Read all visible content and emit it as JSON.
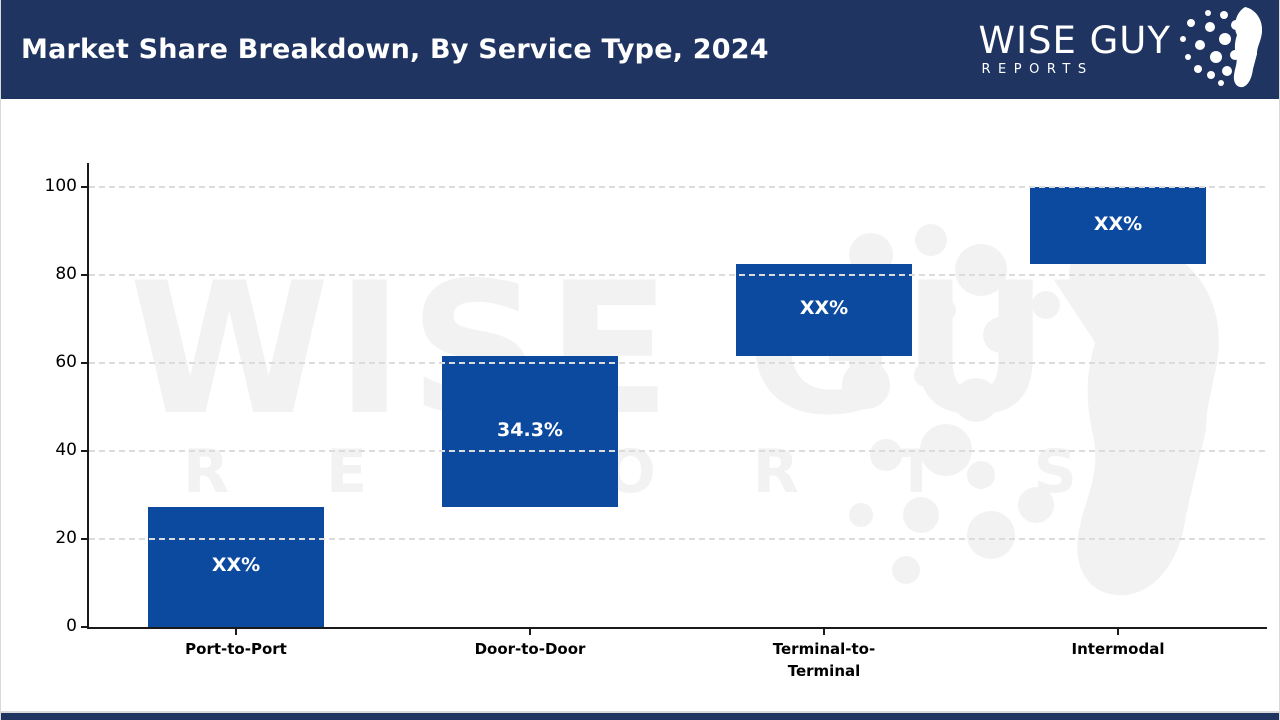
{
  "header": {
    "title": "Market Share Breakdown, By Service Type, 2024",
    "logo_line1": "WISE GUY",
    "logo_line2": "REPORTS"
  },
  "watermark": {
    "line1": "WISE GUY",
    "line2": "R E P O R T S"
  },
  "chart_data": {
    "type": "bar",
    "variant": "waterfall",
    "title": "Market Share Breakdown, By Service Type, 2024",
    "categories": [
      "Port-to-Port",
      "Door-to-Door",
      "Terminal-to-Terminal",
      "Intermodal"
    ],
    "categories_display": [
      "Port-to-Port",
      "Door-to-Door",
      "Terminal-to-\nTerminal",
      "Intermodal"
    ],
    "segments": [
      {
        "category": "Port-to-Port",
        "start": 0,
        "end": 27.2,
        "label": "XX%"
      },
      {
        "category": "Door-to-Door",
        "start": 27.2,
        "end": 61.5,
        "label": "34.3%"
      },
      {
        "category": "Terminal-to-Terminal",
        "start": 61.5,
        "end": 82.4,
        "label": "XX%"
      },
      {
        "category": "Intermodal",
        "start": 82.4,
        "end": 100,
        "label": "XX%"
      }
    ],
    "y_ticks": [
      0,
      20,
      40,
      60,
      80,
      100
    ],
    "ylim": [
      0,
      105
    ],
    "xlabel": "",
    "ylabel": "",
    "legend": "none",
    "grid": "horizontal-dashed",
    "bar_color": "#0c4aa0",
    "grid_color": "#dcdcdc",
    "axis_color": "#1a1a1a"
  },
  "colors": {
    "header_bg": "#203462",
    "footer_bg": "#203462",
    "watermark": "#f2f2f2",
    "bar_value_text": "#ffffff"
  }
}
